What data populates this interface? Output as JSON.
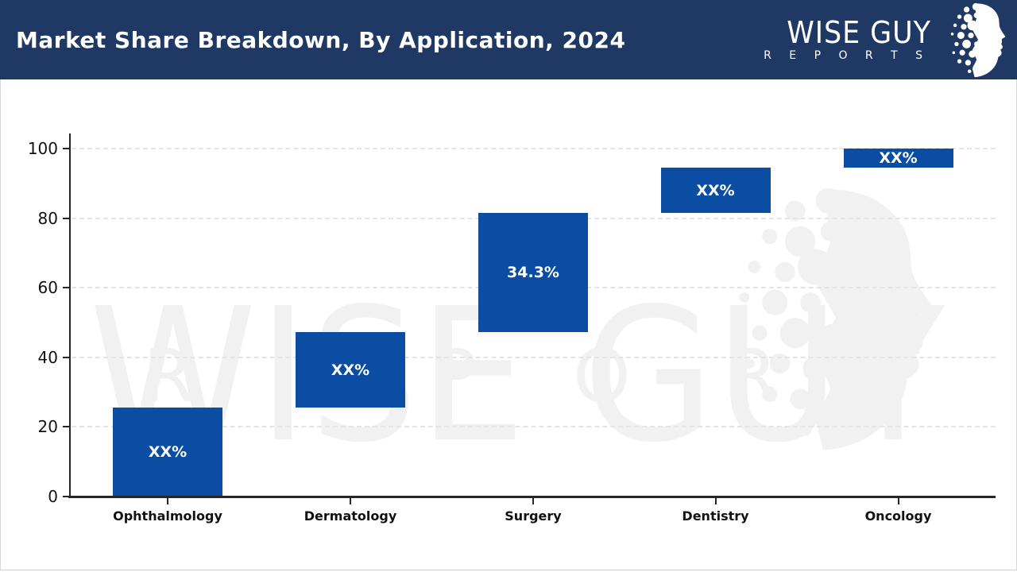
{
  "header": {
    "title": "Market Share Breakdown, By Application, 2024",
    "background_color": "#1f3864",
    "logo": {
      "line1": "WISE GUY",
      "line2": "R E P O R T S"
    }
  },
  "watermark": {
    "line1": "WISE GUY",
    "line2": "R E P O R T S"
  },
  "chart_data": {
    "type": "bar",
    "subtype": "waterfall",
    "title": "Market Share Breakdown, By Application, 2024",
    "xlabel": "",
    "ylabel": "",
    "ylim": [
      0,
      100
    ],
    "yticks": [
      0,
      20,
      40,
      60,
      80,
      100
    ],
    "grid": "horizontal-dashed",
    "legend": "none",
    "bar_color": "#0b4da2",
    "bar_label_color": "#ffffff",
    "categories": [
      "Ophthalmology",
      "Dermatology",
      "Surgery",
      "Dentistry",
      "Oncology"
    ],
    "segments": [
      {
        "category": "Ophthalmology",
        "start": 0,
        "end": 25.6,
        "value_label": "XX%"
      },
      {
        "category": "Dermatology",
        "start": 25.6,
        "end": 47.2,
        "value_label": "XX%"
      },
      {
        "category": "Surgery",
        "start": 47.2,
        "end": 81.5,
        "value_label": "34.3%"
      },
      {
        "category": "Dentistry",
        "start": 81.5,
        "end": 94.5,
        "value_label": "XX%"
      },
      {
        "category": "Oncology",
        "start": 94.5,
        "end": 100,
        "value_label": "XX%"
      }
    ]
  }
}
